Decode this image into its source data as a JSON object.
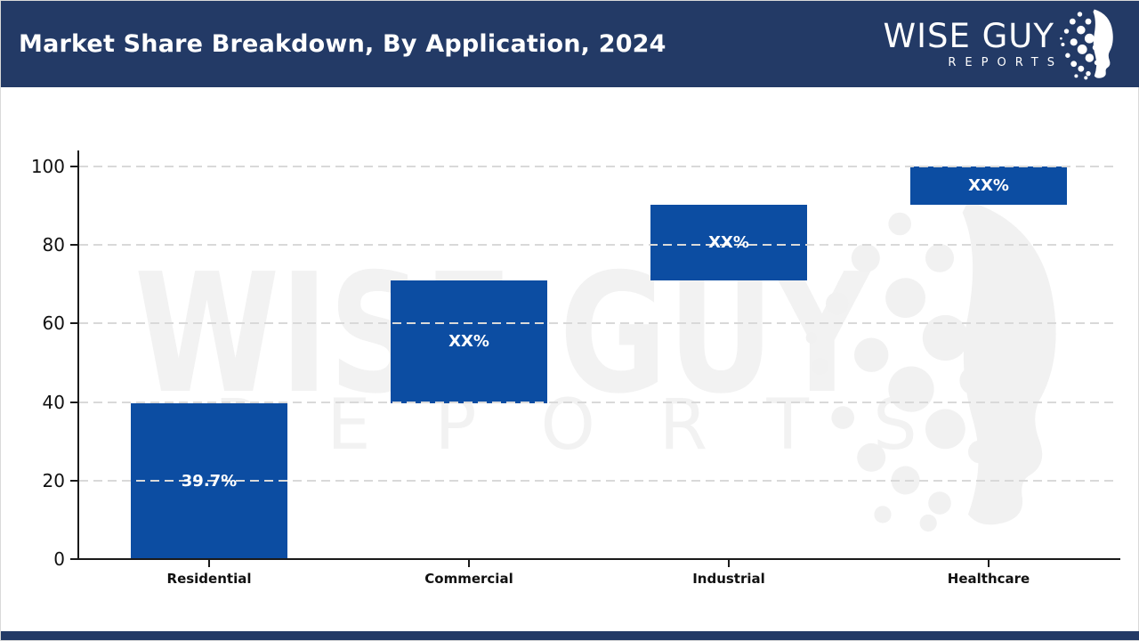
{
  "header": {
    "title": "Market Share Breakdown, By Application, 2024",
    "logo_line1": "WISE GUY",
    "logo_line2": "REPORTS",
    "bg_color": "#233a66"
  },
  "watermark": {
    "line1": "WISE GUY",
    "line2": "REPORTS"
  },
  "chart_data": {
    "type": "bar",
    "subtype": "waterfall",
    "title": "Market Share Breakdown, By Application, 2024",
    "categories": [
      "Residential",
      "Commercial",
      "Industrial",
      "Healthcare"
    ],
    "segments": [
      {
        "category": "Residential",
        "start": 0,
        "end": 39.7,
        "value": 39.7,
        "label": "39.7%"
      },
      {
        "category": "Commercial",
        "start": 39.7,
        "end": 71.0,
        "value": 31.3,
        "label": "XX%"
      },
      {
        "category": "Industrial",
        "start": 71.0,
        "end": 90.3,
        "value": 19.3,
        "label": "XX%"
      },
      {
        "category": "Healthcare",
        "start": 90.3,
        "end": 100.0,
        "value": 9.7,
        "label": "XX%"
      }
    ],
    "xlabel": "",
    "ylabel": "",
    "ylim": [
      0,
      100
    ],
    "yticks": [
      0,
      20,
      40,
      60,
      80,
      100
    ],
    "grid": true,
    "grid_style": "dashed",
    "legend": false,
    "bar_color": "#0c4da2",
    "label_color": "#ffffff",
    "axis_color": "#1a1a1a",
    "gridline_color": "#d9d9d9"
  }
}
